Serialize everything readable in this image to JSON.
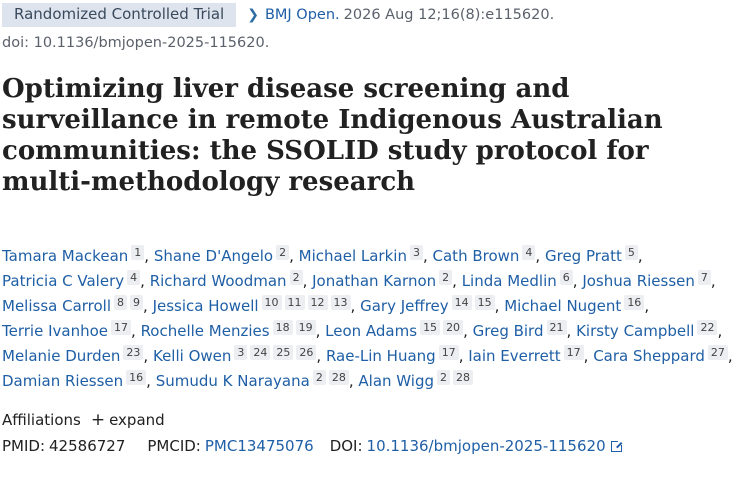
{
  "header": {
    "badge": "Randomized Controlled Trial",
    "journal": "BMJ Open.",
    "citation": "2026 Aug 12;16(8):e115620.",
    "doi_text": "doi: 10.1136/bmjopen-2025-115620."
  },
  "title": "Optimizing liver disease screening and surveillance in remote Indigenous Australian communities: the SSOLID study protocol for multi-methodology research",
  "authors": [
    {
      "name": "Tamara Mackean",
      "affs": [
        "1"
      ]
    },
    {
      "name": "Shane D'Angelo",
      "affs": [
        "2"
      ]
    },
    {
      "name": "Michael Larkin",
      "affs": [
        "3"
      ]
    },
    {
      "name": "Cath Brown",
      "affs": [
        "4"
      ]
    },
    {
      "name": "Greg Pratt",
      "affs": [
        "5"
      ]
    },
    {
      "name": "Patricia C Valery",
      "affs": [
        "4"
      ]
    },
    {
      "name": "Richard Woodman",
      "affs": [
        "2"
      ]
    },
    {
      "name": "Jonathan Karnon",
      "affs": [
        "2"
      ]
    },
    {
      "name": "Linda Medlin",
      "affs": [
        "6"
      ]
    },
    {
      "name": "Joshua Riessen",
      "affs": [
        "7"
      ]
    },
    {
      "name": "Melissa Carroll",
      "affs": [
        "8",
        "9"
      ]
    },
    {
      "name": "Jessica Howell",
      "affs": [
        "10",
        "11",
        "12",
        "13"
      ]
    },
    {
      "name": "Gary Jeffrey",
      "affs": [
        "14",
        "15"
      ]
    },
    {
      "name": "Michael Nugent",
      "affs": [
        "16"
      ]
    },
    {
      "name": "Terrie Ivanhoe",
      "affs": [
        "17"
      ]
    },
    {
      "name": "Rochelle Menzies",
      "affs": [
        "18",
        "19"
      ]
    },
    {
      "name": "Leon Adams",
      "affs": [
        "15",
        "20"
      ]
    },
    {
      "name": "Greg Bird",
      "affs": [
        "21"
      ]
    },
    {
      "name": "Kirsty Campbell",
      "affs": [
        "22"
      ]
    },
    {
      "name": "Melanie Durden",
      "affs": [
        "23"
      ]
    },
    {
      "name": "Kelli Owen",
      "affs": [
        "3",
        "24",
        "25",
        "26"
      ]
    },
    {
      "name": "Rae-Lin Huang",
      "affs": [
        "17"
      ]
    },
    {
      "name": "Iain Everrett",
      "affs": [
        "17"
      ]
    },
    {
      "name": "Cara Sheppard",
      "affs": [
        "27"
      ]
    },
    {
      "name": "Damian Riessen",
      "affs": [
        "16"
      ]
    },
    {
      "name": "Sumudu K Narayana",
      "affs": [
        "2",
        "28"
      ]
    },
    {
      "name": "Alan Wigg",
      "affs": [
        "2",
        "28"
      ]
    }
  ],
  "affiliations": {
    "label": "Affiliations",
    "expand_label": "expand"
  },
  "ids": {
    "pmid_label": "PMID:",
    "pmid": "42586727",
    "pmcid_label": "PMCID:",
    "pmcid": "PMC13475076",
    "doi_label": "DOI:",
    "doi": "10.1136/bmjopen-2025-115620"
  },
  "icons": {
    "header_chevron": "chevron-right-icon",
    "expand": "plus-icon",
    "doi_link": "external-link-icon"
  }
}
